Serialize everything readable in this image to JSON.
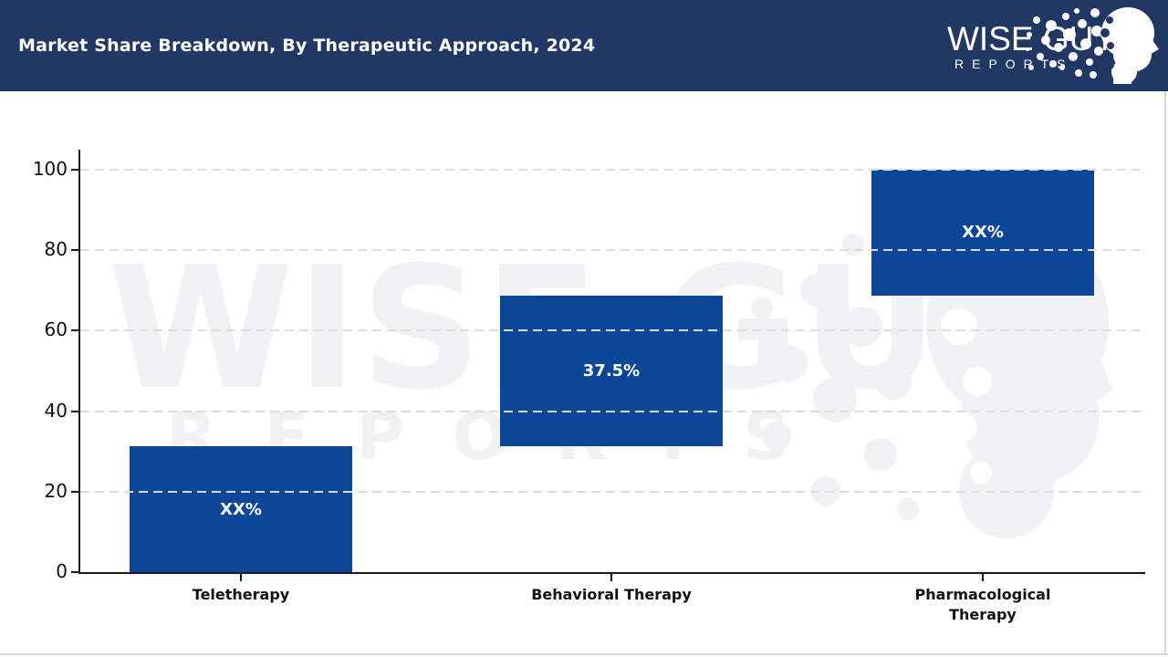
{
  "header": {
    "title": "Market Share Breakdown, By Therapeutic Approach, 2024",
    "brand": {
      "name": "WISE GUY",
      "subtitle": "REPORTS"
    }
  },
  "watermark": {
    "name": "WISE GUY",
    "subtitle": "REPORTS"
  },
  "chart_data": {
    "type": "bar",
    "subtype": "floating-waterfall-segments",
    "title": "Market Share Breakdown, By Therapeutic Approach, 2024",
    "categories": [
      "Teletherapy",
      "Behavioral Therapy",
      "Pharmacological\nTherapy"
    ],
    "segments": [
      {
        "category": "Teletherapy",
        "start": 0,
        "end": 31.25,
        "label": "XX%"
      },
      {
        "category": "Behavioral Therapy",
        "start": 31.25,
        "end": 68.75,
        "label": "37.5%"
      },
      {
        "category": "Pharmacological Therapy",
        "start": 68.75,
        "end": 100,
        "label": "XX%"
      }
    ],
    "xlabel": "",
    "ylabel": "",
    "yticks": [
      0,
      20,
      40,
      60,
      80,
      100
    ],
    "ylim": [
      0,
      105
    ],
    "grid": "horizontal-dashed",
    "legend": "none"
  },
  "colors": {
    "header_bg": "#223864",
    "bar": "#0b4699",
    "bar_label": "#ffffff",
    "grid": "#dcdcdc",
    "axis": "#1a1a1a",
    "watermark": "#f1f1f3",
    "card_edge": "#d9d9d9"
  }
}
